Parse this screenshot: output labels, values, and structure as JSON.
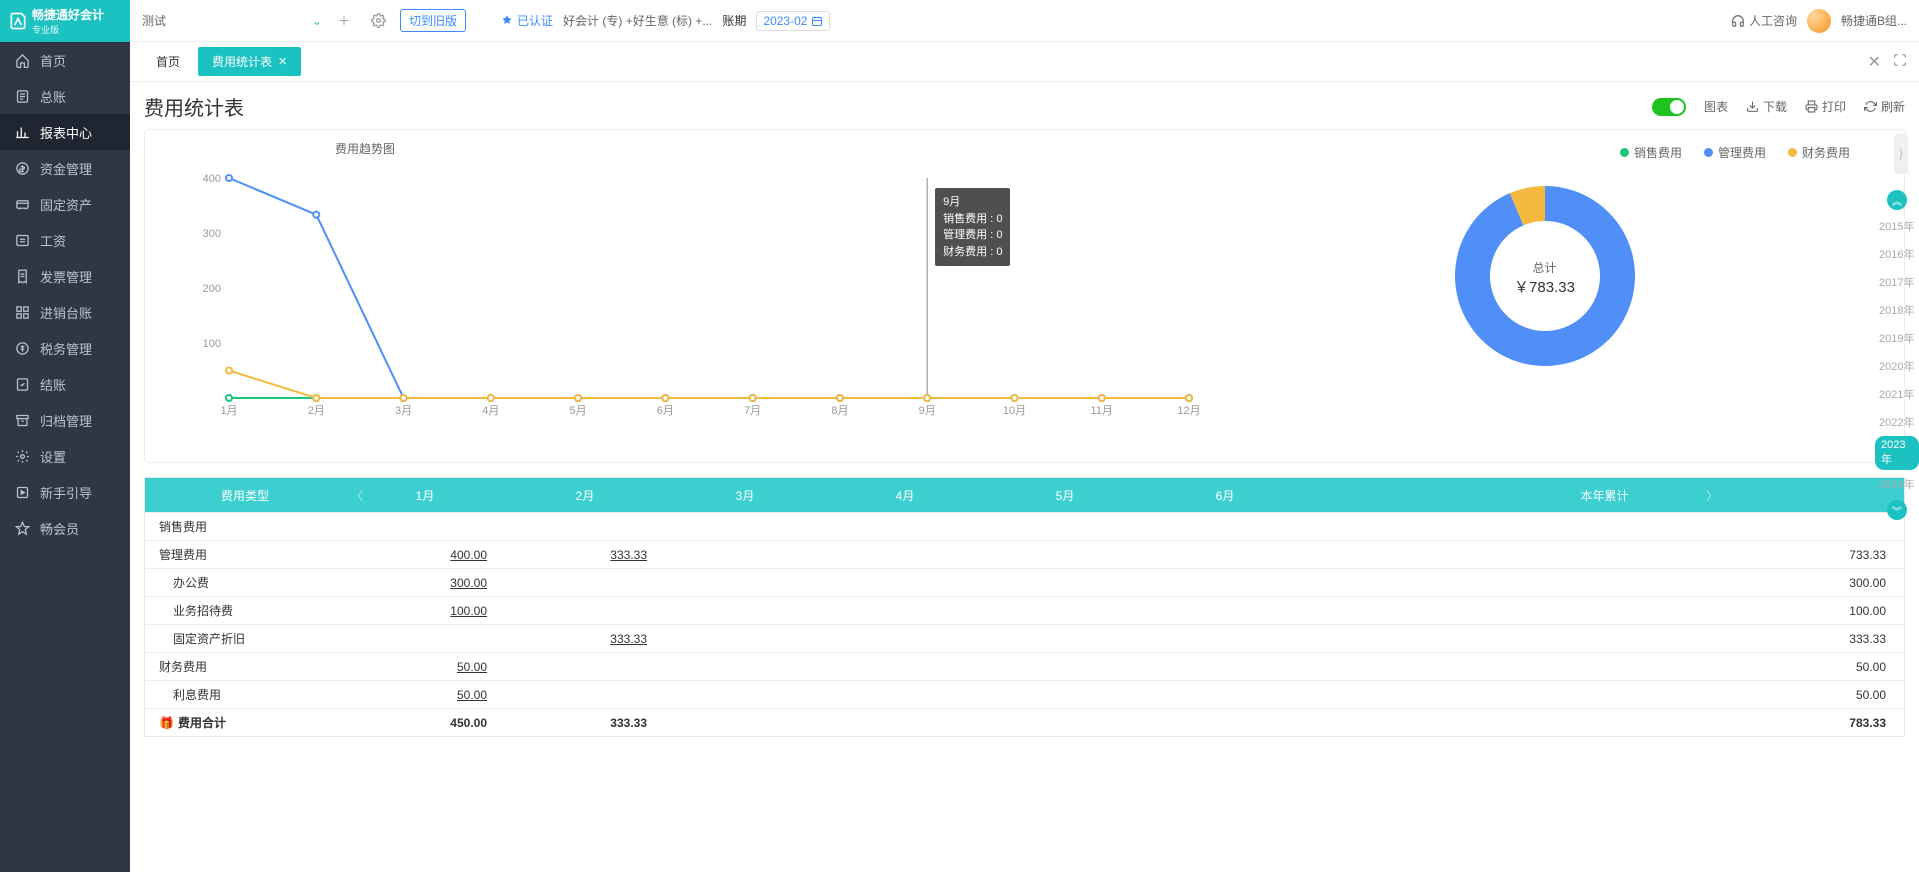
{
  "brand": {
    "name": "畅捷通好会计",
    "sub": "专业版"
  },
  "sidebar": [
    {
      "label": "首页",
      "icon": "home"
    },
    {
      "label": "总账",
      "icon": "ledger"
    },
    {
      "label": "报表中心",
      "icon": "report",
      "active": true
    },
    {
      "label": "资金管理",
      "icon": "fund"
    },
    {
      "label": "固定资产",
      "icon": "asset"
    },
    {
      "label": "工资",
      "icon": "salary"
    },
    {
      "label": "发票管理",
      "icon": "invoice"
    },
    {
      "label": "进销台账",
      "icon": "stock"
    },
    {
      "label": "税务管理",
      "icon": "tax"
    },
    {
      "label": "结账",
      "icon": "close"
    },
    {
      "label": "归档管理",
      "icon": "archive"
    },
    {
      "label": "设置",
      "icon": "settings"
    },
    {
      "label": "新手引导",
      "icon": "guide"
    },
    {
      "label": "畅会员",
      "icon": "vip"
    }
  ],
  "topbar": {
    "company": "测试",
    "oldver": "切到旧版",
    "cert": "已认证",
    "product": "好会计 (专) +好生意 (标) +...",
    "period_label": "账期",
    "period": "2023-02",
    "consult": "人工咨询",
    "user": "畅捷通B组..."
  },
  "tabs": [
    {
      "label": "首页",
      "home": true
    },
    {
      "label": "费用统计表",
      "active": true,
      "closable": true
    }
  ],
  "page": {
    "title": "费用统计表",
    "actions": {
      "chart": "图表",
      "download": "下载",
      "print": "打印",
      "refresh": "刷新"
    }
  },
  "chart": {
    "title": "费用趋势图",
    "x": [
      "1月",
      "2月",
      "3月",
      "4月",
      "5月",
      "6月",
      "7月",
      "8月",
      "9月",
      "10月",
      "11月",
      "12月"
    ],
    "yticks": [
      100,
      200,
      300,
      400
    ],
    "series": [
      {
        "name": "销售费用",
        "color": "#1bc57a",
        "values": [
          0,
          0,
          0,
          0,
          0,
          0,
          0,
          0,
          0,
          0,
          0,
          0
        ]
      },
      {
        "name": "管理费用",
        "color": "#4f8ff7",
        "values": [
          400,
          333.33,
          0,
          0,
          0,
          0,
          0,
          0,
          0,
          0,
          0,
          0
        ]
      },
      {
        "name": "财务费用",
        "color": "#f5b93e",
        "values": [
          50,
          0,
          0,
          0,
          0,
          0,
          0,
          0,
          0,
          0,
          0,
          0
        ]
      }
    ],
    "tooltip": {
      "month": "9月",
      "lines": [
        "销售费用 : 0",
        "管理费用 : 0",
        "财务费用 : 0"
      ],
      "x_index": 8
    }
  },
  "donut": {
    "center_label": "总计",
    "center_value": "￥783.33",
    "slices": [
      {
        "color": "#4f8ff7",
        "pct": 93.6
      },
      {
        "color": "#f5b93e",
        "pct": 6.4
      },
      {
        "color": "#1bc57a",
        "pct": 0
      }
    ]
  },
  "table": {
    "head": {
      "type": "费用类型",
      "months": [
        "1月",
        "2月",
        "3月",
        "4月",
        "5月",
        "6月"
      ],
      "total": "本年累计"
    },
    "rows": [
      {
        "label": "销售费用",
        "m": [
          "",
          "",
          "",
          "",
          "",
          ""
        ],
        "t": ""
      },
      {
        "label": "管理费用",
        "m": [
          "400.00",
          "333.33",
          "",
          "",
          "",
          ""
        ],
        "t": "733.33",
        "u": true
      },
      {
        "label": "办公费",
        "m": [
          "300.00",
          "",
          "",
          "",
          "",
          ""
        ],
        "t": "300.00",
        "indent": 1,
        "u": true
      },
      {
        "label": "业务招待费",
        "m": [
          "100.00",
          "",
          "",
          "",
          "",
          ""
        ],
        "t": "100.00",
        "indent": 1,
        "u": true
      },
      {
        "label": "固定资产折旧",
        "m": [
          "",
          "333.33",
          "",
          "",
          "",
          ""
        ],
        "t": "333.33",
        "indent": 1,
        "u": true
      },
      {
        "label": "财务费用",
        "m": [
          "50.00",
          "",
          "",
          "",
          "",
          ""
        ],
        "t": "50.00",
        "u": true
      },
      {
        "label": "利息费用",
        "m": [
          "50.00",
          "",
          "",
          "",
          "",
          ""
        ],
        "t": "50.00",
        "indent": 1,
        "u": true
      }
    ],
    "total": {
      "label": "费用合计",
      "m": [
        "450.00",
        "333.33",
        "",
        "",
        "",
        ""
      ],
      "t": "783.33"
    }
  },
  "years": {
    "list": [
      "2015年",
      "2016年",
      "2017年",
      "2018年",
      "2019年",
      "2020年",
      "2021年",
      "2022年",
      "2023年",
      "2024年"
    ],
    "active": "2023年"
  }
}
